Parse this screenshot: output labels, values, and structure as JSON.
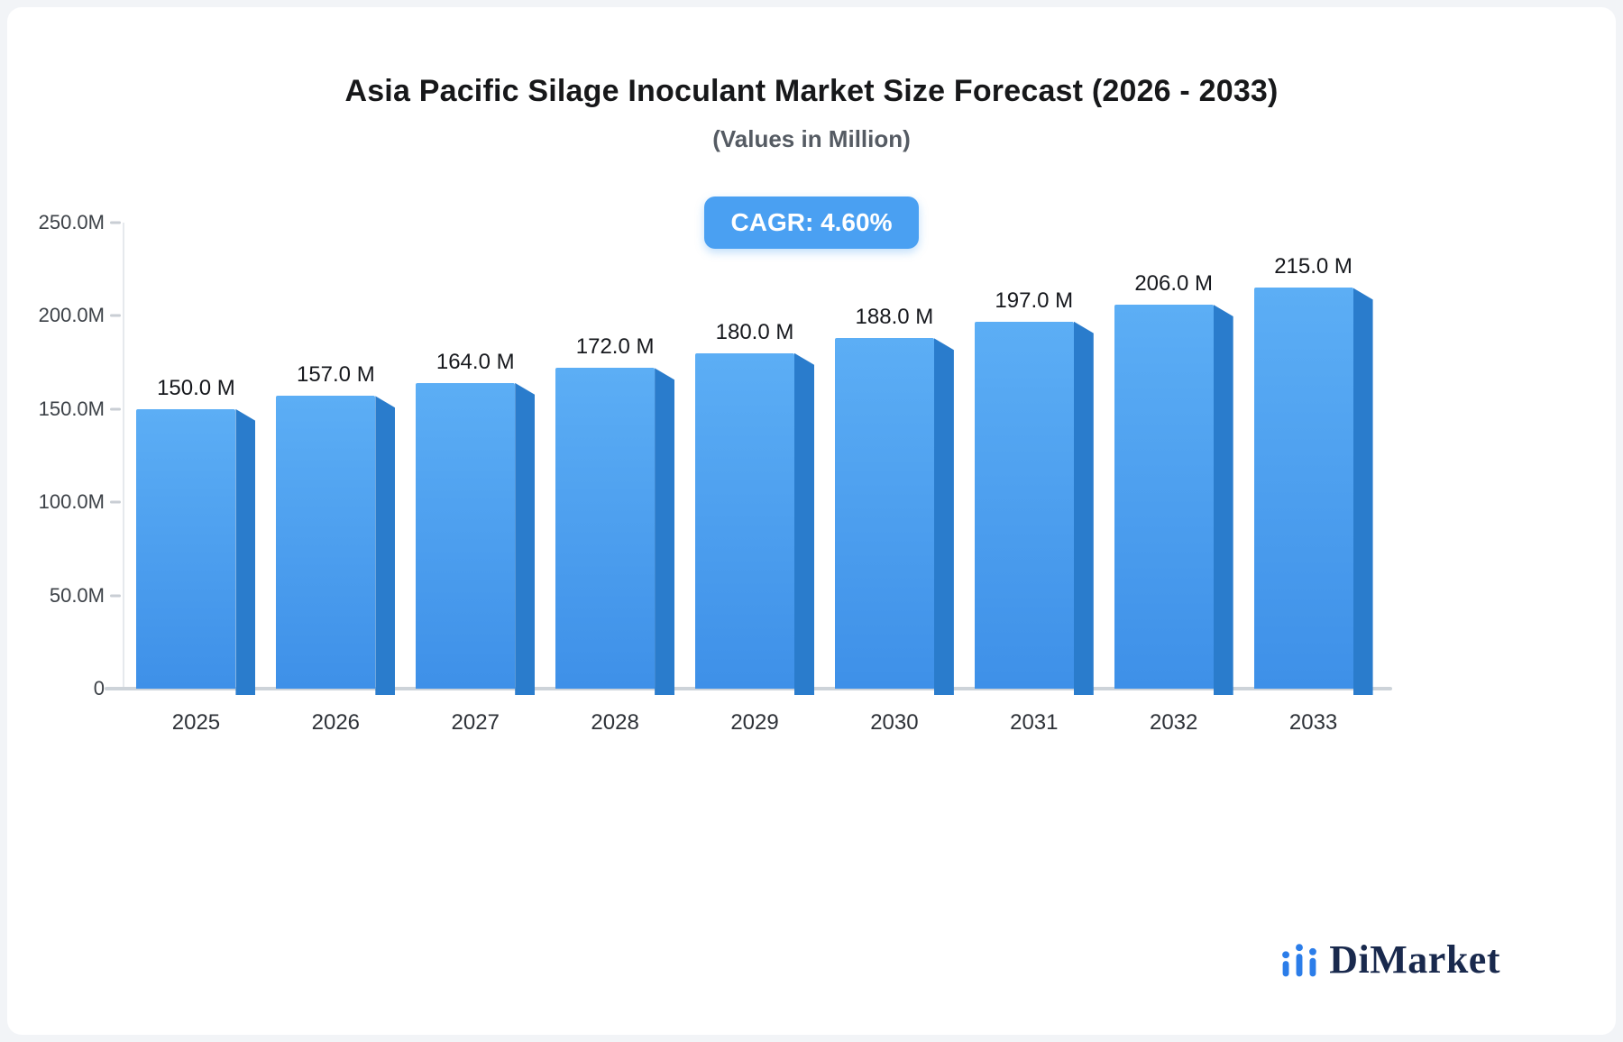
{
  "chart_data": {
    "type": "bar",
    "title": "Asia Pacific Silage Inoculant Market Size Forecast (2026 - 2033)",
    "subtitle": "(Values in Million)",
    "cagr_badge": "CAGR: 4.60%",
    "categories": [
      "2025",
      "2026",
      "2027",
      "2028",
      "2029",
      "2030",
      "2031",
      "2032",
      "2033"
    ],
    "values": [
      150.0,
      157.0,
      164.0,
      172.0,
      180.0,
      188.0,
      197.0,
      206.0,
      215.0
    ],
    "value_labels": [
      "150.0 M",
      "157.0 M",
      "164.0 M",
      "172.0 M",
      "180.0 M",
      "188.0 M",
      "197.0 M",
      "206.0 M",
      "215.0 M"
    ],
    "ylim": [
      0,
      250
    ],
    "yticks": [
      {
        "label": "250.0M",
        "value": 250
      },
      {
        "label": "200.0M",
        "value": 200
      },
      {
        "label": "150.0M",
        "value": 150
      },
      {
        "label": "100.0M",
        "value": 100
      },
      {
        "label": "50.0M",
        "value": 50
      },
      {
        "label": "0",
        "value": 0
      }
    ],
    "grid": "off",
    "legend": "none"
  },
  "branding": {
    "logo_text": "DiMarket",
    "logo_icon": "bar-chart-logo-icon"
  },
  "colors": {
    "title": "#17181a",
    "subtitle": "#555b63",
    "badge_bg": "#4aa0f2",
    "badge_text": "#ffffff",
    "axis_label": "#3c4147",
    "baseline": "#cdd3d9",
    "bar_top": "#5caef5",
    "bar_bottom": "#3e90e8",
    "bar_side": "#2a7ccc",
    "logo_text_color": "#19294d",
    "logo_icon_color": "#2b7de9"
  }
}
